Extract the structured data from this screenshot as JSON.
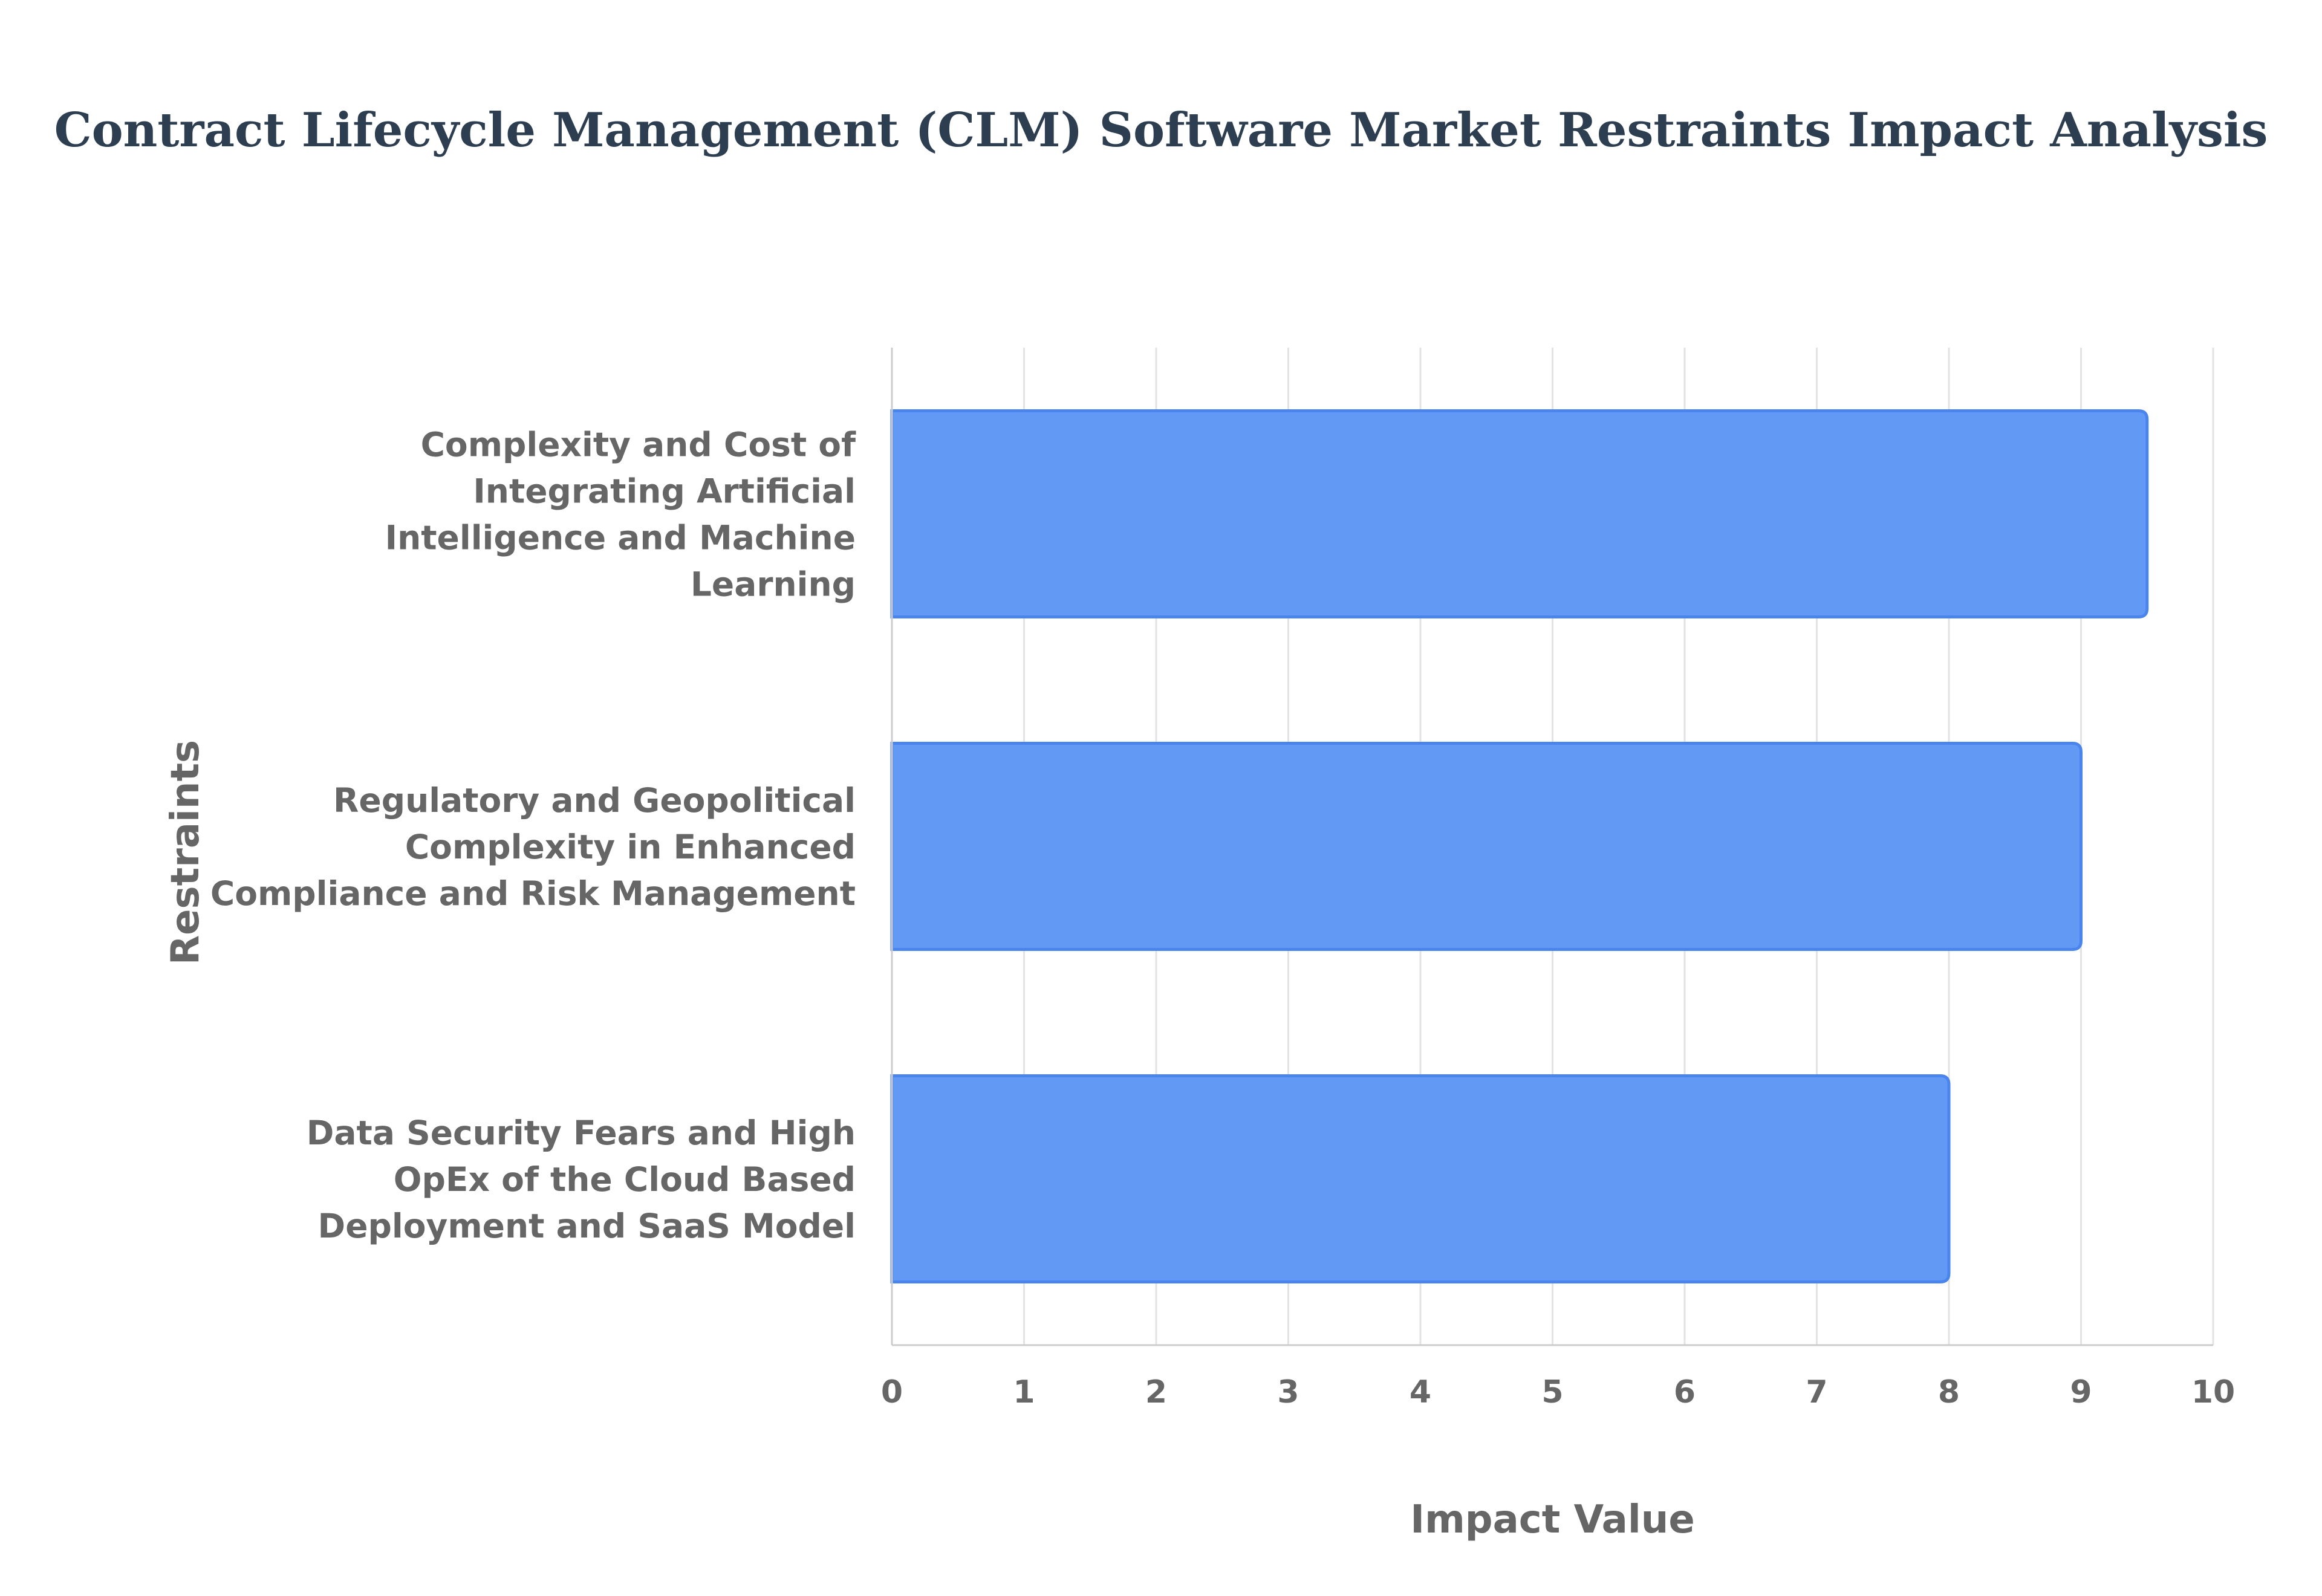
{
  "chart_data": {
    "type": "bar",
    "orientation": "horizontal",
    "title": "Contract Lifecycle Management (CLM) Software Market Restraints Impact Analysis",
    "xlabel": "Impact Value",
    "ylabel": "Restraints",
    "xlim": [
      0,
      10
    ],
    "x_ticks": [
      "0",
      "1",
      "2",
      "3",
      "4",
      "5",
      "6",
      "7",
      "8",
      "9",
      "10"
    ],
    "grid": true,
    "categories": [
      {
        "label": "Complexity and Cost of Integrating Artificial Intelligence and Machine Learning",
        "lines": [
          "Complexity and Cost of",
          "Integrating Artificial",
          "Intelligence and Machine",
          "Learning"
        ]
      },
      {
        "label": "Regulatory and Geopolitical Complexity in Enhanced Compliance and Risk Management",
        "lines": [
          "Regulatory and Geopolitical",
          "Complexity in Enhanced",
          "Compliance and Risk Management"
        ]
      },
      {
        "label": "Data Security Fears and High OpEx of the Cloud Based Deployment and SaaS Model",
        "lines": [
          "Data Security Fears and High",
          "OpEx of the Cloud Based",
          "Deployment and SaaS Model"
        ]
      }
    ],
    "values": [
      9.5,
      9,
      8
    ],
    "colors": {
      "bar_fill": "#6199f5",
      "bar_stroke": "#4a85ee",
      "title": "#2c3e50",
      "text": "#666666"
    }
  }
}
